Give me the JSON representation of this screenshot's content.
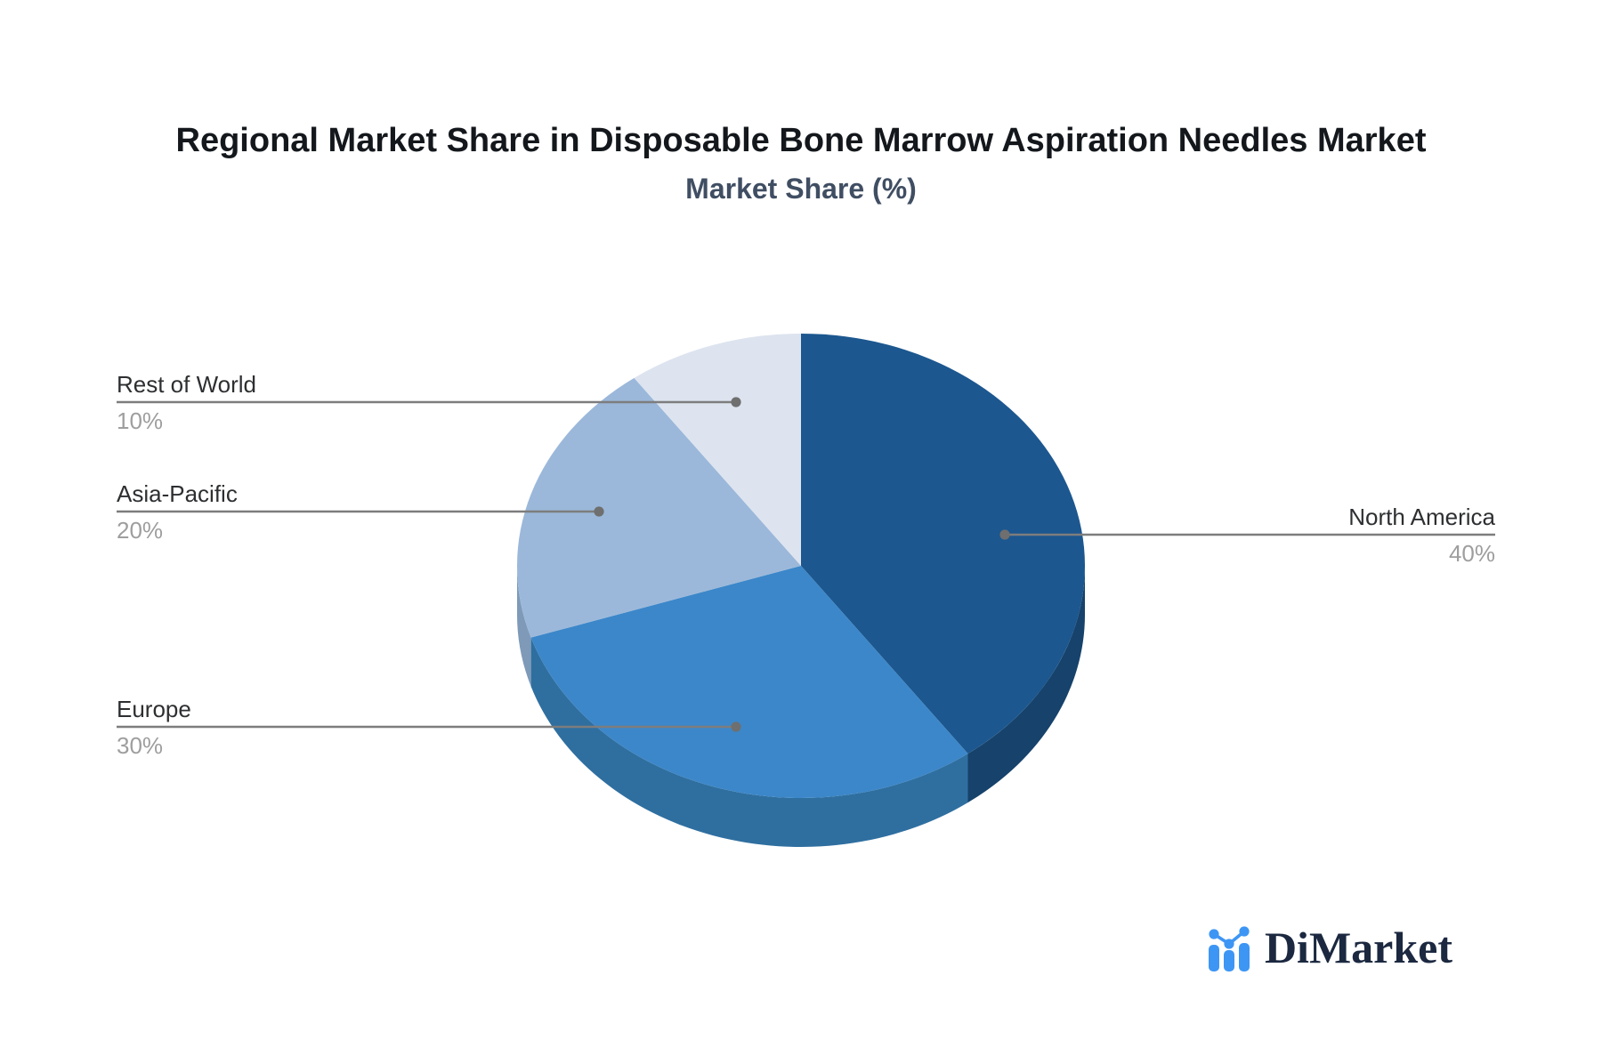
{
  "header": {
    "title": "Regional Market Share in Disposable Bone Marrow Aspiration Needles Market",
    "subtitle": "Market Share (%)"
  },
  "chart_data": {
    "type": "pie",
    "style": "3d-pie",
    "title": "Regional Market Share in Disposable Bone Marrow Aspiration Needles Market",
    "subtitle": "Market Share (%)",
    "unit": "%",
    "start_angle": "12-oclock",
    "direction": "clockwise",
    "labels_position": "callout-lines",
    "categories": [
      "North America",
      "Europe",
      "Asia-Pacific",
      "Rest of World"
    ],
    "values": [
      40,
      30,
      20,
      10
    ],
    "slices": [
      {
        "label": "North America",
        "value": 40,
        "pct_label": "40%",
        "color": "#1c578f",
        "side_color": "#16426b"
      },
      {
        "label": "Europe",
        "value": 30,
        "pct_label": "30%",
        "color": "#3c87c9",
        "side_color": "#2f6fa0"
      },
      {
        "label": "Asia-Pacific",
        "value": 20,
        "pct_label": "20%",
        "color": "#9bb8da",
        "side_color": "#7e9ab8"
      },
      {
        "label": "Rest of World",
        "value": 10,
        "pct_label": "10%",
        "color": "#dde4ef",
        "side_color": "#b7c3d6"
      }
    ],
    "connector_color": "#7d7d7d",
    "dot_color": "#6f6f6f"
  },
  "branding": {
    "logo_text": "DiMarket",
    "logo_icon": "bar-chart-logo-icon",
    "accent_color": "#3e96f4",
    "text_color": "#1b2840"
  }
}
